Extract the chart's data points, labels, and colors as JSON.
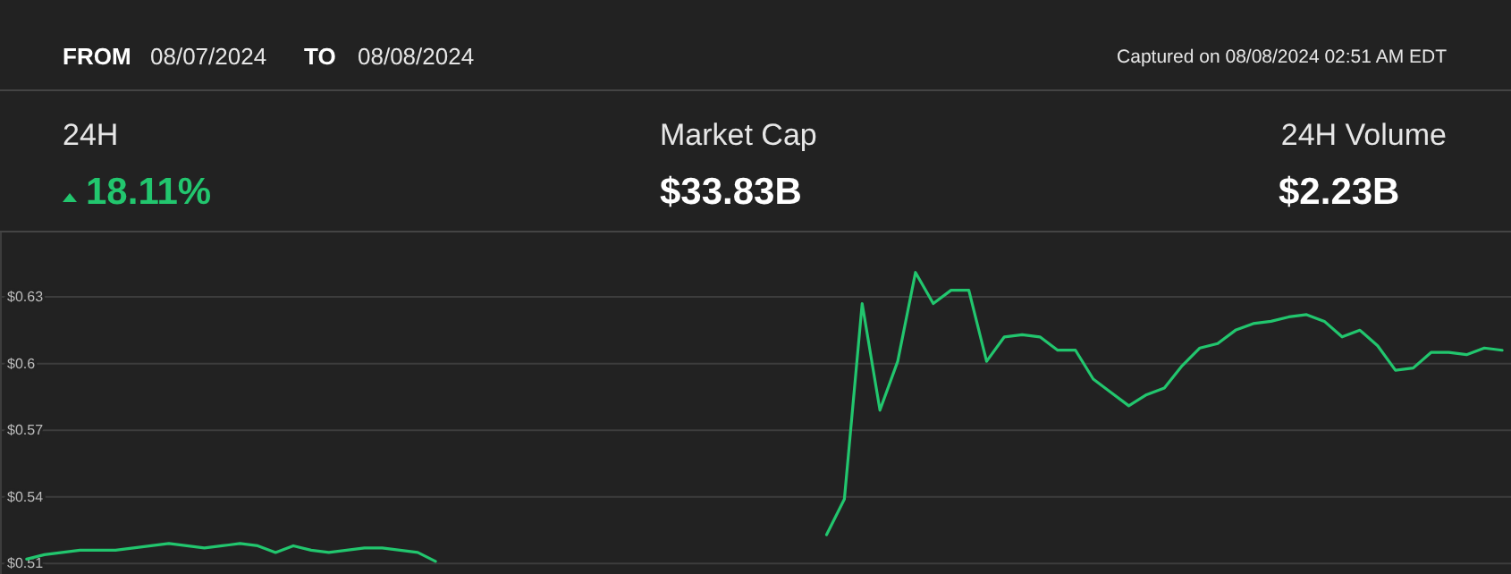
{
  "chart_data": {
    "type": "line",
    "annotations": [
      "FROM",
      "08/07/2024",
      "TO",
      "08/08/2024",
      "Captured on 08/08/2024 02:51 AM EDT",
      "24H",
      "18.11%",
      "Market Cap",
      "$33.83B",
      "24H Volume",
      "$2.23B"
    ],
    "categories": [
      null,
      null,
      null,
      null,
      null,
      null,
      null,
      null,
      null,
      null,
      null,
      null,
      null,
      null,
      null,
      null,
      null,
      null,
      null,
      null,
      null,
      null,
      null,
      null,
      null,
      null,
      null,
      null,
      null,
      null,
      null,
      null,
      null,
      null,
      null,
      null,
      null,
      null,
      null,
      null,
      null,
      null,
      null,
      null,
      null,
      null,
      null,
      null,
      null,
      null,
      null,
      null,
      null,
      null,
      null,
      null,
      null,
      null,
      null,
      null,
      null,
      null,
      null,
      null,
      null,
      null,
      null,
      null,
      null,
      null,
      null,
      null,
      null,
      null,
      null,
      null,
      null,
      null,
      null,
      null,
      null,
      null,
      null,
      null,
      null
    ],
    "series": [
      {
        "color": "#22c66e",
        "values": [
          null,
          0.512,
          0.514,
          0.515,
          0.516,
          0.516,
          0.516,
          0.517,
          0.518,
          0.519,
          0.518,
          0.517,
          0.518,
          0.519,
          0.518,
          0.515,
          0.518,
          0.516,
          0.515,
          0.516,
          0.517,
          0.517,
          0.516,
          0.515,
          0.511,
          null,
          null,
          null,
          null,
          null,
          null,
          null,
          null,
          null,
          null,
          null,
          null,
          null,
          null,
          null,
          null,
          null,
          null,
          null,
          null,
          null,
          0.523,
          0.539,
          0.627,
          0.579,
          0.601,
          0.641,
          0.627,
          0.633,
          0.633,
          0.601,
          0.612,
          0.613,
          0.612,
          0.606,
          0.606,
          0.593,
          0.587,
          0.581,
          0.586,
          0.589,
          0.599,
          0.607,
          0.609,
          0.615,
          0.618,
          0.619,
          0.621,
          0.622,
          0.619,
          0.612,
          0.615,
          0.608,
          0.597,
          0.598,
          0.605,
          0.605,
          0.604,
          0.607,
          0.606
        ]
      }
    ],
    "ylim": [
      0.5053,
      0.659
    ],
    "yticks": [
      {
        "value": 0.51,
        "label": "$0.51"
      },
      {
        "value": 0.54,
        "label": "$0.54"
      },
      {
        "value": 0.57,
        "label": "$0.57"
      },
      {
        "value": 0.6,
        "label": "$0.6"
      },
      {
        "value": 0.63,
        "label": "$0.63"
      }
    ],
    "grid": "y",
    "tick_labels": "y"
  }
}
